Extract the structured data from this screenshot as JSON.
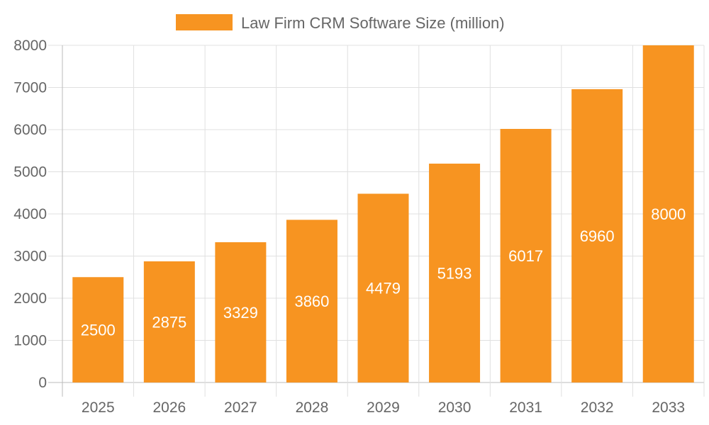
{
  "chart_data": {
    "type": "bar",
    "categories": [
      "2025",
      "2026",
      "2027",
      "2028",
      "2029",
      "2030",
      "2031",
      "2032",
      "2033"
    ],
    "series": [
      {
        "name": "Law Firm CRM Software Size (million)",
        "values": [
          2500,
          2875,
          3329,
          3860,
          4479,
          5193,
          6017,
          6960,
          8000
        ],
        "color": "#f79421"
      }
    ],
    "ylim": [
      0,
      8000
    ],
    "yticks": [
      0,
      1000,
      2000,
      3000,
      4000,
      5000,
      6000,
      7000,
      8000
    ],
    "grid": true,
    "legend": "top-center",
    "data_labels": true,
    "title": "",
    "xlabel": "",
    "ylabel": ""
  }
}
